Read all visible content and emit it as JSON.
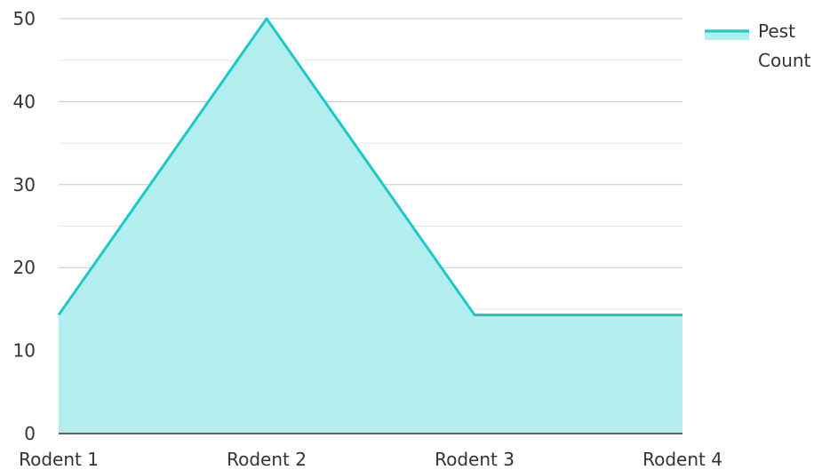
{
  "chart_data": {
    "type": "area",
    "categories": [
      "Rodent 1",
      "Rodent 2",
      "Rodent 3",
      "Rodent 4"
    ],
    "series": [
      {
        "name": "Pest Count",
        "values": [
          14.3,
          50,
          14.3,
          14.3
        ]
      }
    ],
    "ylim": [
      0,
      50
    ],
    "yticks": [
      0,
      10,
      20,
      30,
      40,
      50
    ],
    "grid": true,
    "legend": {
      "position": "top-right",
      "label_lines": [
        "Pest",
        "Count"
      ]
    },
    "colors": {
      "line": "#1ec8c8",
      "fill": "#b3eeee",
      "grid_major": "#c8c8c8",
      "grid_minor": "#e6e6e6",
      "axis": "#333333",
      "text": "#333333"
    }
  }
}
